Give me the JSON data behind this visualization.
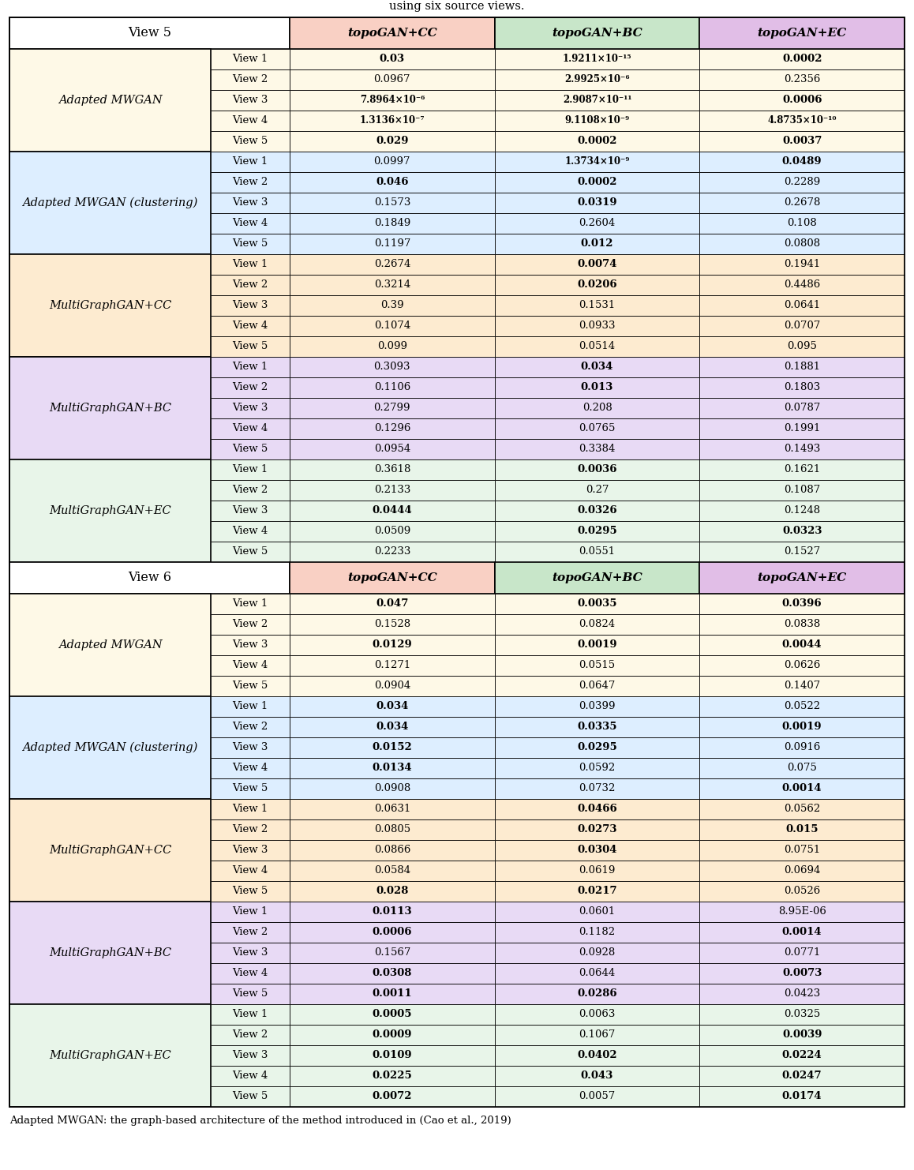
{
  "title_top": "using six source views.",
  "footer": "Adapted MWGAN: the graph-based architecture of the method introduced in (Cao et al., 2019)",
  "hdr_colors": [
    "#f9d0c4",
    "#c8e6c9",
    "#e1bee7"
  ],
  "hdr_labels": [
    "topoGAN+CC",
    "topoGAN+BC",
    "topoGAN+EC"
  ],
  "section_view5": {
    "label": "View 5",
    "groups": [
      {
        "label": "Adapted MWGAN",
        "bg": "#fef9e7",
        "rows": [
          [
            "View 1",
            "0.03",
            "1.9211×10⁻¹⁵",
            "0.0002"
          ],
          [
            "View 2",
            "0.0967",
            "2.9925×10⁻⁶",
            "0.2356"
          ],
          [
            "View 3",
            "7.8964×10⁻⁶",
            "2.9087×10⁻¹¹",
            "0.0006"
          ],
          [
            "View 4",
            "1.3136×10⁻⁷",
            "9.1108×10⁻⁹",
            "4.8735×10⁻¹⁰"
          ],
          [
            "View 5",
            "0.029",
            "0.0002",
            "0.0037"
          ]
        ],
        "bold": [
          [
            false,
            true,
            true,
            true
          ],
          [
            false,
            false,
            true,
            false
          ],
          [
            false,
            true,
            true,
            true
          ],
          [
            false,
            true,
            true,
            true
          ],
          [
            false,
            true,
            true,
            true
          ]
        ]
      },
      {
        "label": "Adapted MWGAN (clustering)",
        "bg": "#ddeeff",
        "rows": [
          [
            "View 1",
            "0.0997",
            "1.3734×10⁻⁹",
            "0.0489"
          ],
          [
            "View 2",
            "0.046",
            "0.0002",
            "0.2289"
          ],
          [
            "View 3",
            "0.1573",
            "0.0319",
            "0.2678"
          ],
          [
            "View 4",
            "0.1849",
            "0.2604",
            "0.108"
          ],
          [
            "View 5",
            "0.1197",
            "0.012",
            "0.0808"
          ]
        ],
        "bold": [
          [
            false,
            false,
            true,
            true
          ],
          [
            false,
            true,
            true,
            false
          ],
          [
            false,
            false,
            true,
            false
          ],
          [
            false,
            false,
            false,
            false
          ],
          [
            false,
            false,
            true,
            false
          ]
        ]
      },
      {
        "label": "MultiGraphGAN+CC",
        "bg": "#fdebd0",
        "rows": [
          [
            "View 1",
            "0.2674",
            "0.0074",
            "0.1941"
          ],
          [
            "View 2",
            "0.3214",
            "0.0206",
            "0.4486"
          ],
          [
            "View 3",
            "0.39",
            "0.1531",
            "0.0641"
          ],
          [
            "View 4",
            "0.1074",
            "0.0933",
            "0.0707"
          ],
          [
            "View 5",
            "0.099",
            "0.0514",
            "0.095"
          ]
        ],
        "bold": [
          [
            false,
            false,
            true,
            false
          ],
          [
            false,
            false,
            true,
            false
          ],
          [
            false,
            false,
            false,
            false
          ],
          [
            false,
            false,
            false,
            false
          ],
          [
            false,
            false,
            false,
            false
          ]
        ]
      },
      {
        "label": "MultiGraphGAN+BC",
        "bg": "#e8daf5",
        "rows": [
          [
            "View 1",
            "0.3093",
            "0.034",
            "0.1881"
          ],
          [
            "View 2",
            "0.1106",
            "0.013",
            "0.1803"
          ],
          [
            "View 3",
            "0.2799",
            "0.208",
            "0.0787"
          ],
          [
            "View 4",
            "0.1296",
            "0.0765",
            "0.1991"
          ],
          [
            "View 5",
            "0.0954",
            "0.3384",
            "0.1493"
          ]
        ],
        "bold": [
          [
            false,
            false,
            true,
            false
          ],
          [
            false,
            false,
            true,
            false
          ],
          [
            false,
            false,
            false,
            false
          ],
          [
            false,
            false,
            false,
            false
          ],
          [
            false,
            false,
            false,
            false
          ]
        ]
      },
      {
        "label": "MultiGraphGAN+EC",
        "bg": "#e8f5e9",
        "rows": [
          [
            "View 1",
            "0.3618",
            "0.0036",
            "0.1621"
          ],
          [
            "View 2",
            "0.2133",
            "0.27",
            "0.1087"
          ],
          [
            "View 3",
            "0.0444",
            "0.0326",
            "0.1248"
          ],
          [
            "View 4",
            "0.0509",
            "0.0295",
            "0.0323"
          ],
          [
            "View 5",
            "0.2233",
            "0.0551",
            "0.1527"
          ]
        ],
        "bold": [
          [
            false,
            false,
            true,
            false
          ],
          [
            false,
            false,
            false,
            false
          ],
          [
            false,
            true,
            true,
            false
          ],
          [
            false,
            false,
            true,
            true
          ],
          [
            false,
            false,
            false,
            false
          ]
        ]
      }
    ]
  },
  "section_view6": {
    "label": "View 6",
    "groups": [
      {
        "label": "Adapted MWGAN",
        "bg": "#fef9e7",
        "rows": [
          [
            "View 1",
            "0.047",
            "0.0035",
            "0.0396"
          ],
          [
            "View 2",
            "0.1528",
            "0.0824",
            "0.0838"
          ],
          [
            "View 3",
            "0.0129",
            "0.0019",
            "0.0044"
          ],
          [
            "View 4",
            "0.1271",
            "0.0515",
            "0.0626"
          ],
          [
            "View 5",
            "0.0904",
            "0.0647",
            "0.1407"
          ]
        ],
        "bold": [
          [
            false,
            true,
            true,
            true
          ],
          [
            false,
            false,
            false,
            false
          ],
          [
            false,
            true,
            true,
            true
          ],
          [
            false,
            false,
            false,
            false
          ],
          [
            false,
            false,
            false,
            false
          ]
        ]
      },
      {
        "label": "Adapted MWGAN (clustering)",
        "bg": "#ddeeff",
        "rows": [
          [
            "View 1",
            "0.034",
            "0.0399",
            "0.0522"
          ],
          [
            "View 2",
            "0.034",
            "0.0335",
            "0.0019"
          ],
          [
            "View 3",
            "0.0152",
            "0.0295",
            "0.0916"
          ],
          [
            "View 4",
            "0.0134",
            "0.0592",
            "0.075"
          ],
          [
            "View 5",
            "0.0908",
            "0.0732",
            "0.0014"
          ]
        ],
        "bold": [
          [
            false,
            true,
            false,
            false
          ],
          [
            false,
            true,
            true,
            true
          ],
          [
            false,
            true,
            true,
            false
          ],
          [
            false,
            true,
            false,
            false
          ],
          [
            false,
            false,
            false,
            true
          ]
        ]
      },
      {
        "label": "MultiGraphGAN+CC",
        "bg": "#fdebd0",
        "rows": [
          [
            "View 1",
            "0.0631",
            "0.0466",
            "0.0562"
          ],
          [
            "View 2",
            "0.0805",
            "0.0273",
            "0.015"
          ],
          [
            "View 3",
            "0.0866",
            "0.0304",
            "0.0751"
          ],
          [
            "View 4",
            "0.0584",
            "0.0619",
            "0.0694"
          ],
          [
            "View 5",
            "0.028",
            "0.0217",
            "0.0526"
          ]
        ],
        "bold": [
          [
            false,
            false,
            true,
            false
          ],
          [
            false,
            false,
            true,
            true
          ],
          [
            false,
            false,
            true,
            false
          ],
          [
            false,
            false,
            false,
            false
          ],
          [
            false,
            true,
            true,
            false
          ]
        ]
      },
      {
        "label": "MultiGraphGAN+BC",
        "bg": "#e8daf5",
        "rows": [
          [
            "View 1",
            "0.0113",
            "0.0601",
            "8.95E-06"
          ],
          [
            "View 2",
            "0.0006",
            "0.1182",
            "0.0014"
          ],
          [
            "View 3",
            "0.1567",
            "0.0928",
            "0.0771"
          ],
          [
            "View 4",
            "0.0308",
            "0.0644",
            "0.0073"
          ],
          [
            "View 5",
            "0.0011",
            "0.0286",
            "0.0423"
          ]
        ],
        "bold": [
          [
            false,
            true,
            false,
            false
          ],
          [
            false,
            true,
            false,
            true
          ],
          [
            false,
            false,
            false,
            false
          ],
          [
            false,
            true,
            false,
            true
          ],
          [
            false,
            true,
            true,
            false
          ]
        ]
      },
      {
        "label": "MultiGraphGAN+EC",
        "bg": "#e8f5e9",
        "rows": [
          [
            "View 1",
            "0.0005",
            "0.0063",
            "0.0325"
          ],
          [
            "View 2",
            "0.0009",
            "0.1067",
            "0.0039"
          ],
          [
            "View 3",
            "0.0109",
            "0.0402",
            "0.0224"
          ],
          [
            "View 4",
            "0.0225",
            "0.043",
            "0.0247"
          ],
          [
            "View 5",
            "0.0072",
            "0.0057",
            "0.0174"
          ]
        ],
        "bold": [
          [
            false,
            true,
            false,
            false
          ],
          [
            false,
            true,
            false,
            true
          ],
          [
            false,
            true,
            true,
            true
          ],
          [
            false,
            true,
            true,
            true
          ],
          [
            false,
            true,
            false,
            true
          ]
        ]
      }
    ]
  }
}
